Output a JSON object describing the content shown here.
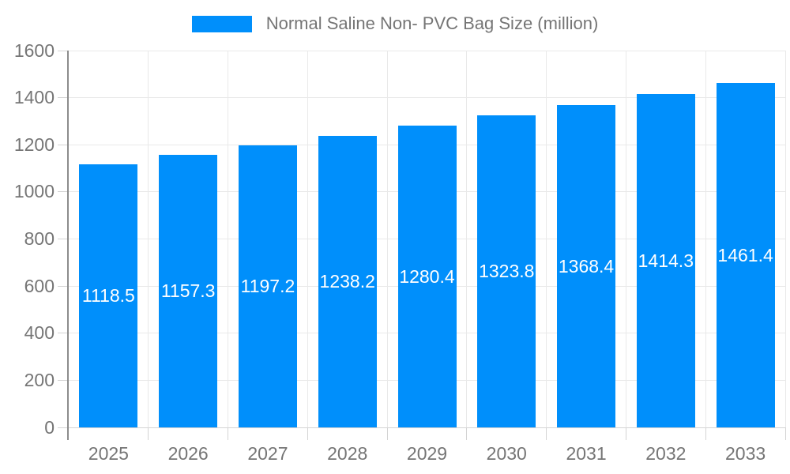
{
  "chart_data": {
    "type": "bar",
    "title": "",
    "legend": "Normal Saline Non- PVC Bag Size (million)",
    "legend_position": "top",
    "categories": [
      "2025",
      "2026",
      "2027",
      "2028",
      "2029",
      "2030",
      "2031",
      "2032",
      "2033"
    ],
    "series": [
      {
        "name": "Normal Saline Non- PVC Bag Size (million)",
        "values": [
          1118.5,
          1157.3,
          1197.2,
          1238.2,
          1280.4,
          1323.8,
          1368.4,
          1414.3,
          1461.4
        ]
      }
    ],
    "xlabel": "",
    "ylabel": "",
    "ylim": [
      0,
      1600
    ],
    "ytick_step": 200,
    "grid": true,
    "value_labels_shown": true,
    "colors": {
      "bar": "#008FFB",
      "value_label": "#ffffff",
      "axis_text": "#757575",
      "grid_line": "#e9e9e9",
      "axis_line": "#8c8c8c",
      "tick_line": "#d4d4d4",
      "background": "#ffffff"
    }
  }
}
